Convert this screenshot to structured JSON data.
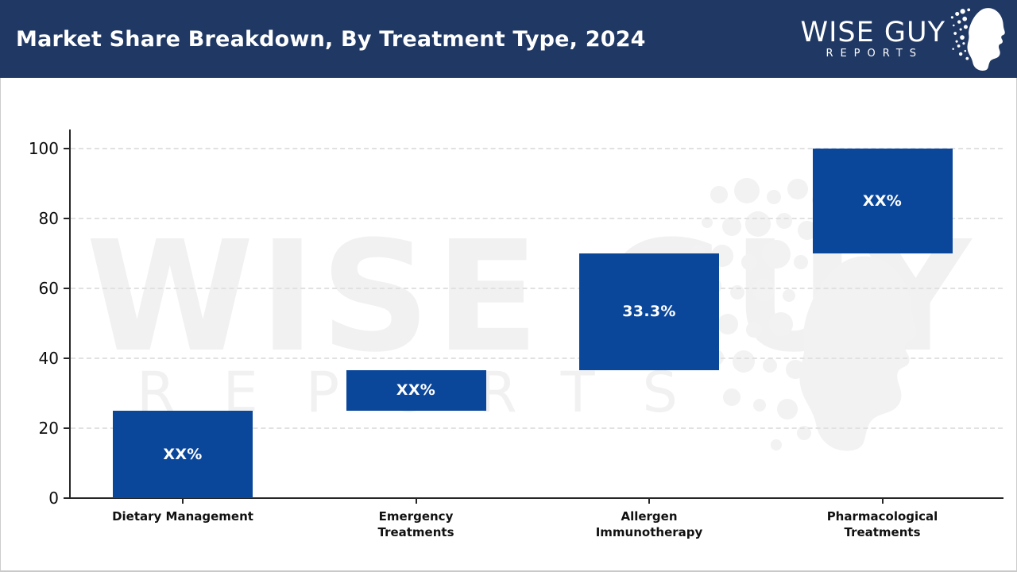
{
  "header": {
    "title": "Market Share Breakdown, By Treatment Type, 2024",
    "bg_color": "#203864",
    "logo": {
      "name": "WISE GUY",
      "sub": "REPORTS"
    }
  },
  "watermark": {
    "text": "WISE GUY",
    "sub": "REPORTS"
  },
  "chart_data": {
    "type": "bar",
    "subtype": "floating-waterfall",
    "title": "Market Share Breakdown, By Treatment Type, 2024",
    "categories": [
      "Dietary Management",
      "Emergency\nTreatments",
      "Allergen\nImmunotherapy",
      "Pharmacological\nTreatments"
    ],
    "segments": [
      {
        "category": "Dietary Management",
        "start": 0,
        "end": 25,
        "value": 25,
        "value_label": "XX%"
      },
      {
        "category": "Emergency Treatments",
        "start": 25,
        "end": 36.7,
        "value": 11.7,
        "value_label": "XX%"
      },
      {
        "category": "Allergen Immunotherapy",
        "start": 36.7,
        "end": 70,
        "value": 33.3,
        "value_label": "33.3%"
      },
      {
        "category": "Pharmacological Treatments",
        "start": 70,
        "end": 100,
        "value": 30,
        "value_label": "XX%"
      }
    ],
    "bar_color": "#0a4699",
    "label_color": "#ffffff",
    "xlabel": "",
    "ylabel": "",
    "ylim": [
      0,
      100
    ],
    "yticks": [
      0,
      20,
      40,
      60,
      80,
      100
    ],
    "grid": {
      "axis": "y",
      "style": "dashed",
      "color": "#e1e1e1"
    },
    "axis_color": "#262626",
    "legend": "none"
  }
}
